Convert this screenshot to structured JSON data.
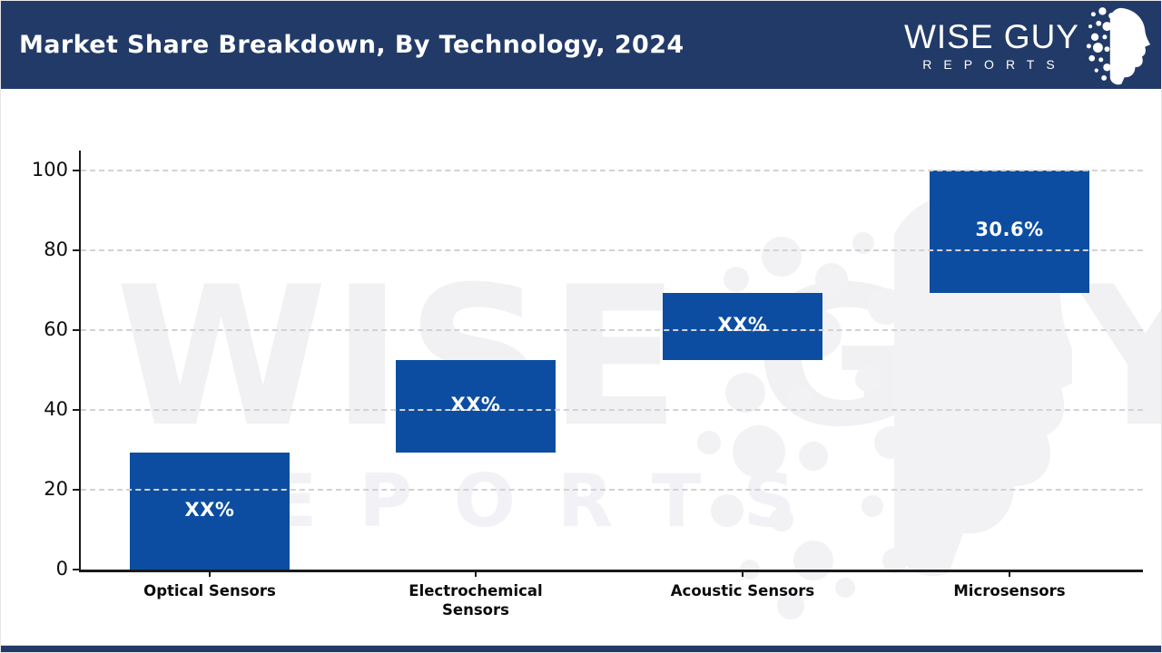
{
  "header": {
    "title": "Market Share Breakdown, By Technology, 2024",
    "logo": {
      "line1": "WISE GUY",
      "line2": "REPORTS"
    }
  },
  "watermark": {
    "line1": "WISE GUY",
    "line2": "REPORTS"
  },
  "colors": {
    "header_bg": "#223A67",
    "footer_bg": "#223A67",
    "bar": "#0D4DA1",
    "bar_label": "#FFFFFF",
    "grid": "#D2D2D2",
    "axis": "#1A1A1A",
    "watermark": "#F1F1F4"
  },
  "chart_data": {
    "type": "bar",
    "subtype": "waterfall-floating-bars",
    "title": "Market Share Breakdown, By Technology, 2024",
    "xlabel": "",
    "ylabel": "",
    "ylim": [
      0,
      100
    ],
    "yticks": [
      0,
      20,
      40,
      60,
      80,
      100
    ],
    "grid": "horizontal-dashed",
    "legend_position": "none",
    "categories": [
      "Optical Sensors",
      "Electrochemical Sensors",
      "Acoustic Sensors",
      "Microsensors"
    ],
    "values": [
      29.3,
      23.1,
      17.0,
      30.6
    ],
    "segments": [
      {
        "category": "Optical Sensors",
        "start": 0,
        "end": 29.3,
        "label": "XX%"
      },
      {
        "category": "Electrochemical Sensors",
        "start": 29.3,
        "end": 52.4,
        "label": "XX%"
      },
      {
        "category": "Acoustic Sensors",
        "start": 52.4,
        "end": 69.4,
        "label": "XX%"
      },
      {
        "category": "Microsensors",
        "start": 69.4,
        "end": 100,
        "label": "30.6%"
      }
    ]
  }
}
